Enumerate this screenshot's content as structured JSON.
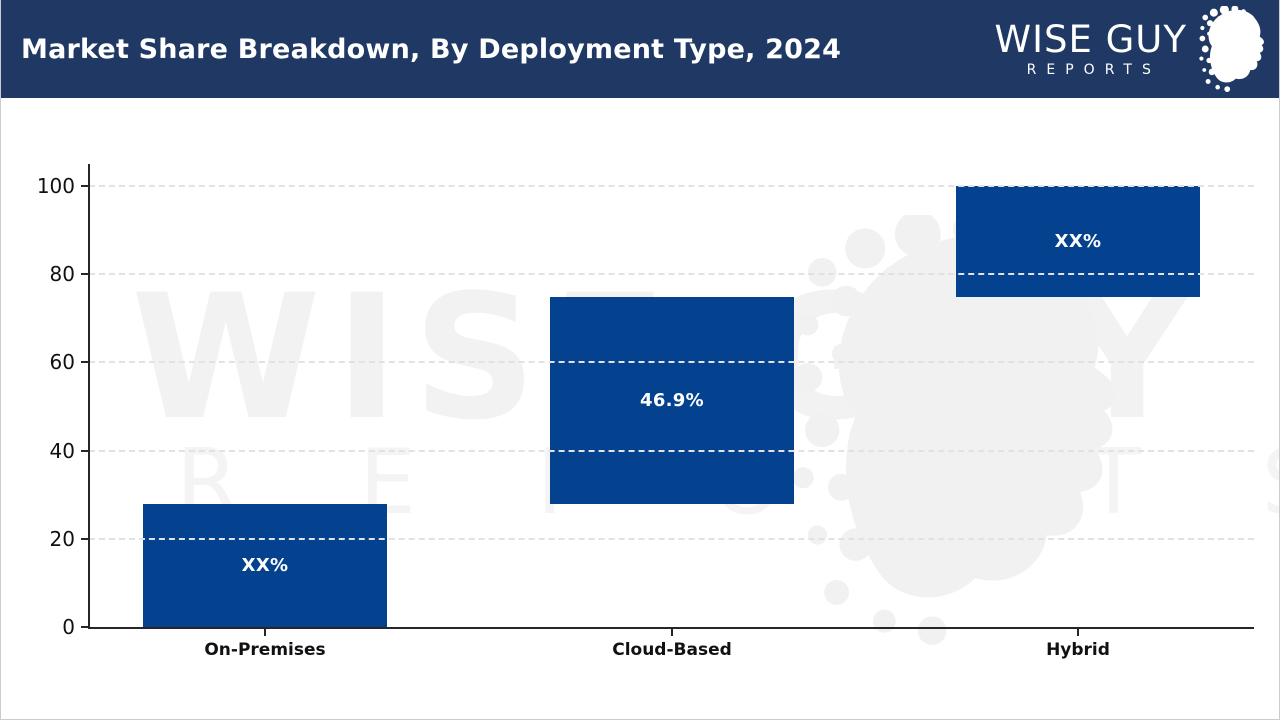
{
  "header": {
    "title": "Market Share Breakdown, By Deployment Type, 2024",
    "bg_color": "#1F3864",
    "logo": {
      "line1": "WISE GUY",
      "line2": "REPORTS"
    }
  },
  "watermark": {
    "line1": "WISE GUY",
    "line2": "R E P O R T S"
  },
  "chart_data": {
    "type": "bar",
    "subtype": "floating-waterfall",
    "title": "Market Share Breakdown, By Deployment Type, 2024",
    "categories": [
      "On-Premises",
      "Cloud-Based",
      "Hybrid"
    ],
    "bars": [
      {
        "category": "On-Premises",
        "start": 0,
        "end": 28,
        "label": "XX%"
      },
      {
        "category": "Cloud-Based",
        "start": 28,
        "end": 74.9,
        "label": "46.9%"
      },
      {
        "category": "Hybrid",
        "start": 74.9,
        "end": 100,
        "label": "XX%"
      }
    ],
    "xlabel": "",
    "ylabel": "",
    "ylim": [
      0,
      100
    ],
    "yticks": [
      0,
      20,
      40,
      60,
      80,
      100
    ],
    "grid": "horizontal-dashed",
    "legend": "none",
    "colors": {
      "bar": "#04428F",
      "gridline": "#E2E2E2",
      "axis": "#262626",
      "bar_label": "#FFFFFF",
      "tick_label": "#111111"
    }
  }
}
